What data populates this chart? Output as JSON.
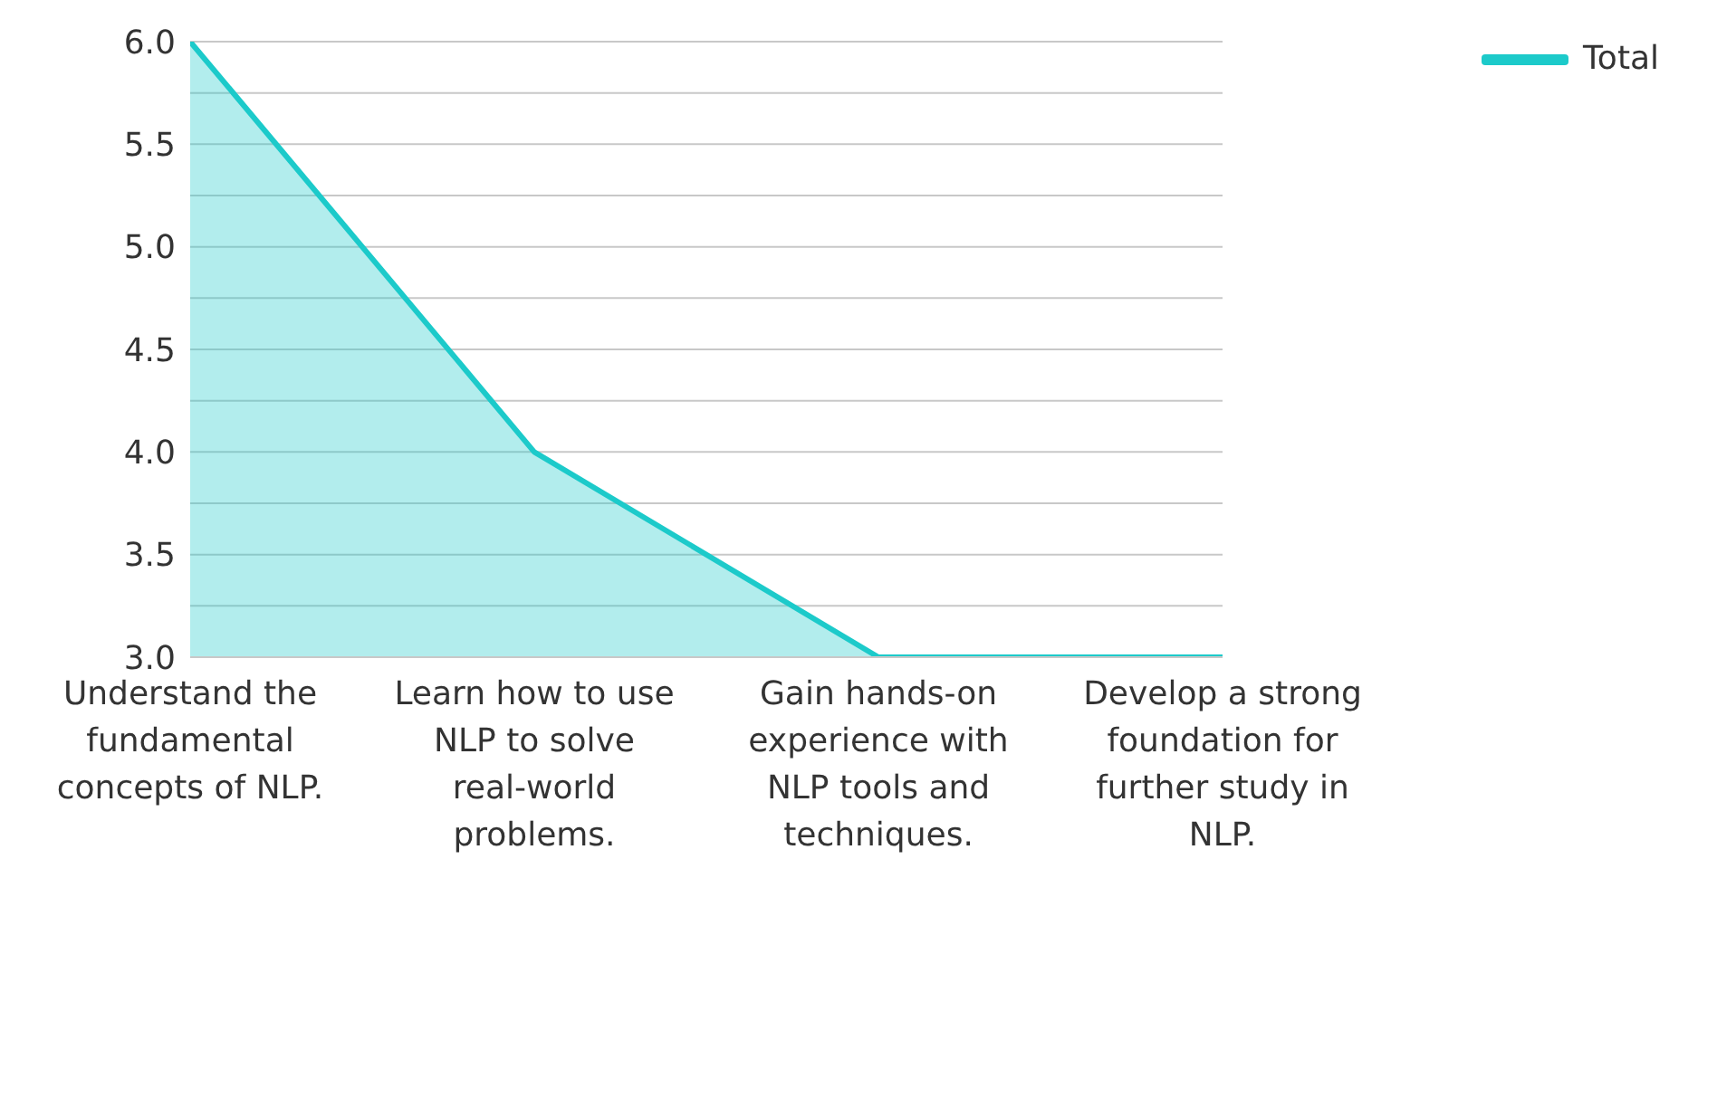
{
  "chart_data": {
    "type": "area",
    "categories": [
      "Understand the fundamental concepts of NLP.",
      "Learn how to use NLP to solve real-world problems.",
      "Gain hands-on experience with NLP tools and techniques.",
      "Develop a strong foundation for further study in NLP."
    ],
    "series": [
      {
        "name": "Total",
        "color": "#1ccaca",
        "values": [
          6,
          4,
          3,
          3
        ]
      }
    ],
    "ylim": [
      3,
      6
    ],
    "yticks": [
      {
        "value": 3.0,
        "label": "3.0"
      },
      {
        "value": 3.25,
        "label": null
      },
      {
        "value": 3.5,
        "label": "3.5"
      },
      {
        "value": 3.75,
        "label": null
      },
      {
        "value": 4.0,
        "label": "4.0"
      },
      {
        "value": 4.25,
        "label": null
      },
      {
        "value": 4.5,
        "label": "4.5"
      },
      {
        "value": 4.75,
        "label": null
      },
      {
        "value": 5.0,
        "label": "5.0"
      },
      {
        "value": 5.25,
        "label": null
      },
      {
        "value": 5.5,
        "label": "5.5"
      },
      {
        "value": 5.75,
        "label": null
      },
      {
        "value": 6.0,
        "label": "6.0"
      }
    ],
    "grid": "y",
    "legend": "top right",
    "marker": "none",
    "line_style": "solid"
  }
}
